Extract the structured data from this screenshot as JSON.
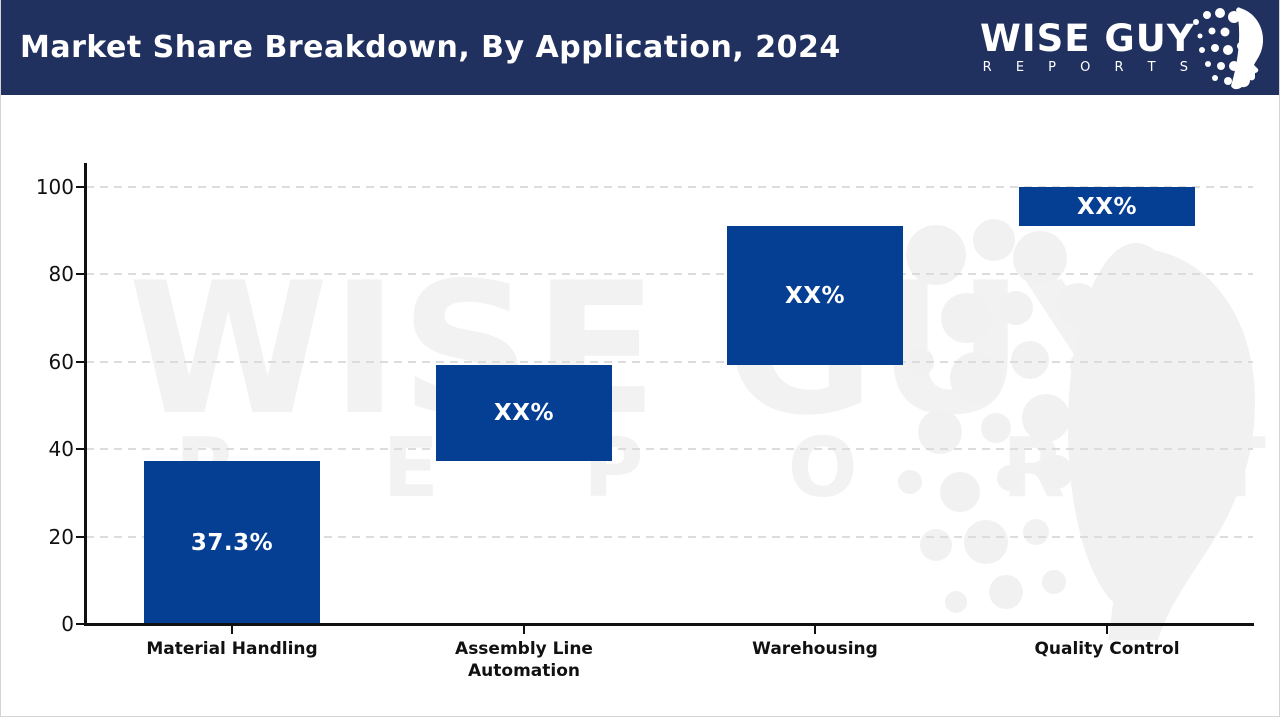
{
  "header": {
    "title": "Market Share Breakdown, By Application, 2024",
    "logo": {
      "line1": "WISE GUY",
      "line2": "REPORTS"
    }
  },
  "watermark": {
    "line1": "WISE GUY",
    "line2": "REPORTS"
  },
  "theme": {
    "header_bg": "#20305f",
    "bar_color": "#053f94",
    "bar_label_color": "#ffffff",
    "grid_color": "#dcdcdc",
    "watermark_color": "#f2f2f2",
    "axis_color": "#111111"
  },
  "chart_data": {
    "type": "bar",
    "variant": "waterfall",
    "title": "Market Share Breakdown, By Application, 2024",
    "xlabel": "",
    "ylabel": "",
    "categories": [
      "Material Handling",
      "Assembly Line\nAutomation",
      "Warehousing",
      "Quality Control"
    ],
    "segments": [
      {
        "category": "Material Handling",
        "start": 0,
        "end": 37.3,
        "label": "37.3%"
      },
      {
        "category": "Assembly Line Automation",
        "start": 37.3,
        "end": 59.2,
        "label": "XX%"
      },
      {
        "category": "Warehousing",
        "start": 59.2,
        "end": 91.0,
        "label": "XX%"
      },
      {
        "category": "Quality Control",
        "start": 91.0,
        "end": 100.0,
        "label": "XX%"
      }
    ],
    "yticks": [
      0,
      20,
      40,
      60,
      80,
      100
    ],
    "ylim": [
      0,
      105
    ],
    "grid": {
      "axis": "y",
      "style": "dashed",
      "on": true
    },
    "legend": "none"
  }
}
